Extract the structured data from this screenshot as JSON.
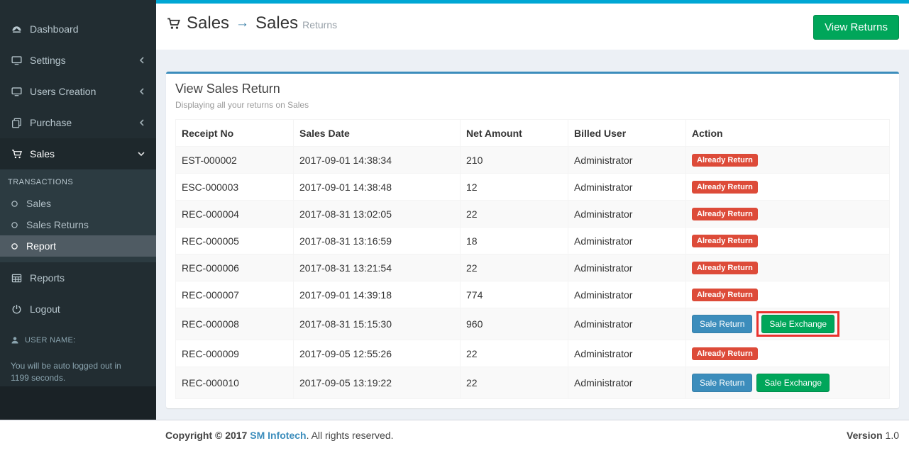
{
  "theme": {
    "sidebar_bg": "#222d32",
    "sidebar_active_bg": "#1e282c",
    "tree_bg": "#2c3b41",
    "topbar_strip": "#00a7d4",
    "card_border": "#3c8dbc",
    "green": "#00a65a",
    "red": "#dd4b39",
    "blue": "#3c8dbc",
    "highlight_red": "#e9322d"
  },
  "icons": {
    "sidebar": [
      "dashboard-icon",
      "settings-icon",
      "users-creation-icon",
      "purchase-icon",
      "sales-cart-icon",
      "circle-icon",
      "reports-icon",
      "logout-icon",
      "user-icon",
      "chevron-left-icon",
      "chevron-down-icon"
    ],
    "breadcrumb": "cart-icon"
  },
  "sidebar": {
    "items": [
      {
        "label": "Dashboard"
      },
      {
        "label": "Settings"
      },
      {
        "label": "Users Creation"
      },
      {
        "label": "Purchase"
      },
      {
        "label": "Sales"
      }
    ],
    "transactions_label": "TRANSACTIONS",
    "sub_items": [
      {
        "label": "Sales"
      },
      {
        "label": "Sales Returns"
      },
      {
        "label": "Report"
      }
    ],
    "lower_items": [
      {
        "label": "Reports"
      },
      {
        "label": "Logout"
      }
    ],
    "user_label": "USER NAME:",
    "auto_logout_line1": "You will be auto logged out in",
    "auto_logout_line2": "1199 seconds."
  },
  "header": {
    "breadcrumb_root": "Sales",
    "breadcrumb_arrow": "→",
    "breadcrumb_main": "Sales",
    "breadcrumb_sub": "Returns",
    "view_returns_button": "View Returns"
  },
  "card": {
    "title": "View Sales Return",
    "subtitle": "Displaying all your returns on Sales"
  },
  "badges": {
    "already_return": "Already Return",
    "sale_return": "Sale Return",
    "sale_exchange": "Sale Exchange"
  },
  "table": {
    "headers": [
      "Receipt No",
      "Sales Date",
      "Net Amount",
      "Billed User",
      "Action"
    ],
    "rows": [
      {
        "receipt": "EST-000002",
        "date": "2017-09-01 14:38:34",
        "amount": "210",
        "user": "Administrator",
        "actions": [
          "already"
        ]
      },
      {
        "receipt": "ESC-000003",
        "date": "2017-09-01 14:38:48",
        "amount": "12",
        "user": "Administrator",
        "actions": [
          "already"
        ]
      },
      {
        "receipt": "REC-000004",
        "date": "2017-08-31 13:02:05",
        "amount": "22",
        "user": "Administrator",
        "actions": [
          "already"
        ]
      },
      {
        "receipt": "REC-000005",
        "date": "2017-08-31 13:16:59",
        "amount": "18",
        "user": "Administrator",
        "actions": [
          "already"
        ]
      },
      {
        "receipt": "REC-000006",
        "date": "2017-08-31 13:21:54",
        "amount": "22",
        "user": "Administrator",
        "actions": [
          "already"
        ]
      },
      {
        "receipt": "REC-000007",
        "date": "2017-09-01 14:39:18",
        "amount": "774",
        "user": "Administrator",
        "actions": [
          "already"
        ]
      },
      {
        "receipt": "REC-000008",
        "date": "2017-08-31 15:15:30",
        "amount": "960",
        "user": "Administrator",
        "actions": [
          "return",
          "exchange"
        ],
        "exchange_highlighted": true
      },
      {
        "receipt": "REC-000009",
        "date": "2017-09-05 12:55:26",
        "amount": "22",
        "user": "Administrator",
        "actions": [
          "already"
        ]
      },
      {
        "receipt": "REC-000010",
        "date": "2017-09-05 13:19:22",
        "amount": "22",
        "user": "Administrator",
        "actions": [
          "return",
          "exchange"
        ]
      }
    ]
  },
  "footer": {
    "copyright_prefix": "Copyright © 2017 ",
    "company": "SM Infotech",
    "copyright_suffix": ". All rights reserved.",
    "version_label": "Version",
    "version_value": " 1.0"
  }
}
